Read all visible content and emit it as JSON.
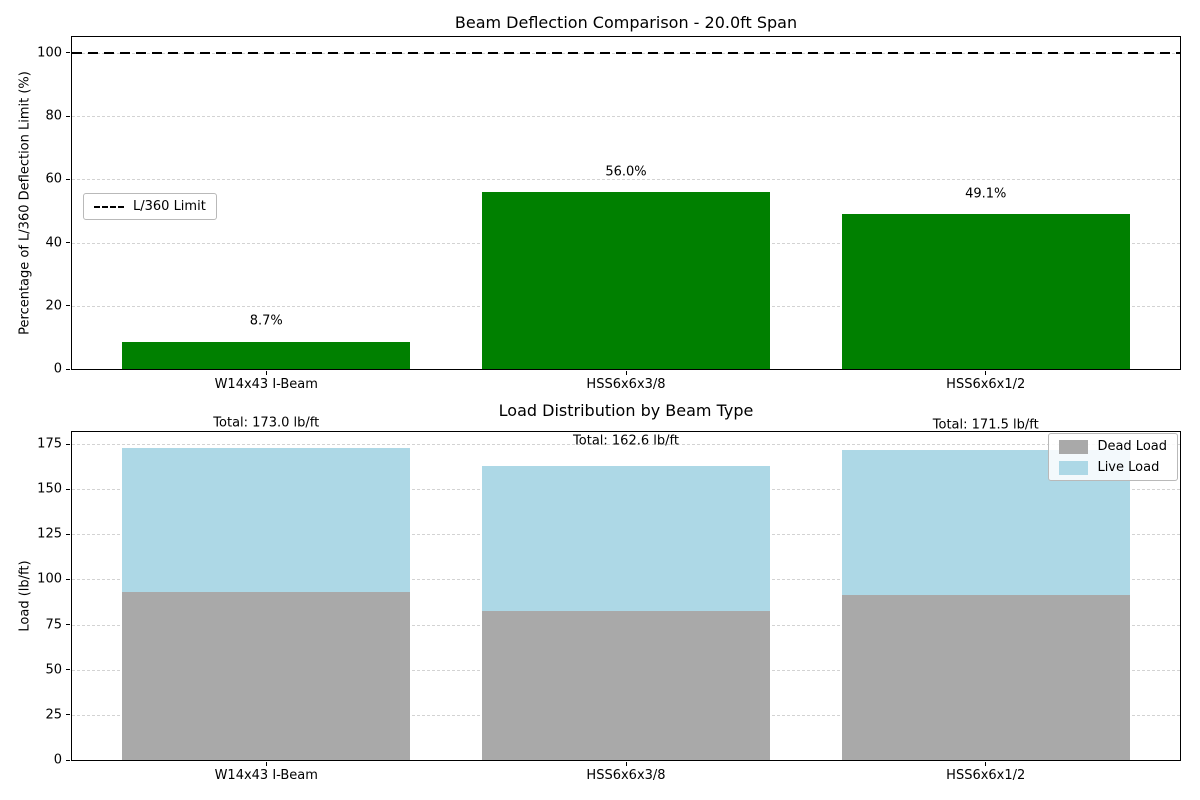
{
  "figure": {
    "background": "#ffffff"
  },
  "chart_data": [
    {
      "type": "bar",
      "title": "Beam Deflection Comparison - 20.0ft Span",
      "ylabel": "Percentage of L/360 Deflection Limit (%)",
      "categories": [
        "W14x43 I-Beam",
        "HSS6x6x3/8",
        "HSS6x6x1/2"
      ],
      "values": [
        8.7,
        56.0,
        49.1
      ],
      "value_labels": [
        "8.7%",
        "56.0%",
        "49.1%"
      ],
      "bar_color": "#008000",
      "ylim": [
        0,
        105
      ],
      "yticks": [
        0,
        20,
        40,
        60,
        80,
        100
      ],
      "grid": true,
      "limit_line": {
        "value": 100,
        "label": "L/360 Limit",
        "color": "#000000",
        "style": "dashed"
      },
      "legend_position": "center-left"
    },
    {
      "type": "bar",
      "stacked": true,
      "title": "Load Distribution by Beam Type",
      "ylabel": "Load (lb/ft)",
      "categories": [
        "W14x43 I-Beam",
        "HSS6x6x3/8",
        "HSS6x6x1/2"
      ],
      "series": [
        {
          "name": "Dead Load",
          "color": "#a9a9a9",
          "values": [
            93.0,
            82.6,
            91.5
          ]
        },
        {
          "name": "Live Load",
          "color": "#add8e6",
          "values": [
            80.0,
            80.0,
            80.0
          ]
        }
      ],
      "totals": [
        173.0,
        162.6,
        171.5
      ],
      "total_labels": [
        "Total: 173.0 lb/ft",
        "Total: 162.6 lb/ft",
        "Total: 171.5 lb/ft"
      ],
      "ylim": [
        0,
        181.65
      ],
      "yticks": [
        0,
        25,
        50,
        75,
        100,
        125,
        150,
        175
      ],
      "grid": true,
      "legend_position": "top-right"
    }
  ]
}
